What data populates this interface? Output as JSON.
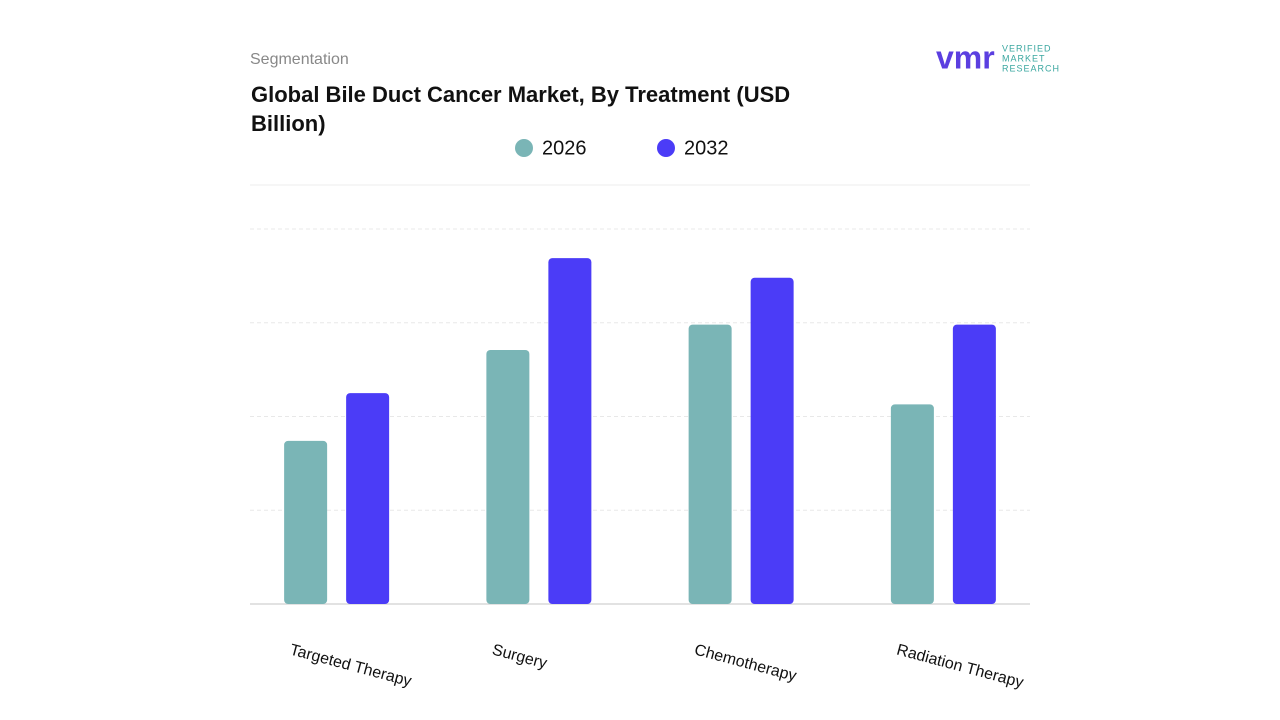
{
  "header": "Segmentation",
  "logo": {
    "mark": "vmr",
    "lines": [
      "VERIFIED",
      "MARKET",
      "RESEARCH"
    ]
  },
  "chart_data": {
    "type": "bar",
    "title": "Global Bile Duct Cancer Market, By Treatment (USD Billion)",
    "categories": [
      "Targeted Therapy",
      "Surgery",
      "Chemotherapy",
      "Radiation Therapy"
    ],
    "series": [
      {
        "name": "2026",
        "color": "#7ab5b6",
        "values": [
          1.74,
          2.71,
          2.98,
          2.13
        ]
      },
      {
        "name": "2032",
        "color": "#4b3cf7",
        "values": [
          2.25,
          3.69,
          3.48,
          2.98
        ]
      }
    ],
    "ylim": [
      0,
      4
    ],
    "yticks": [
      0,
      1,
      2,
      3,
      4
    ],
    "grid": true
  }
}
